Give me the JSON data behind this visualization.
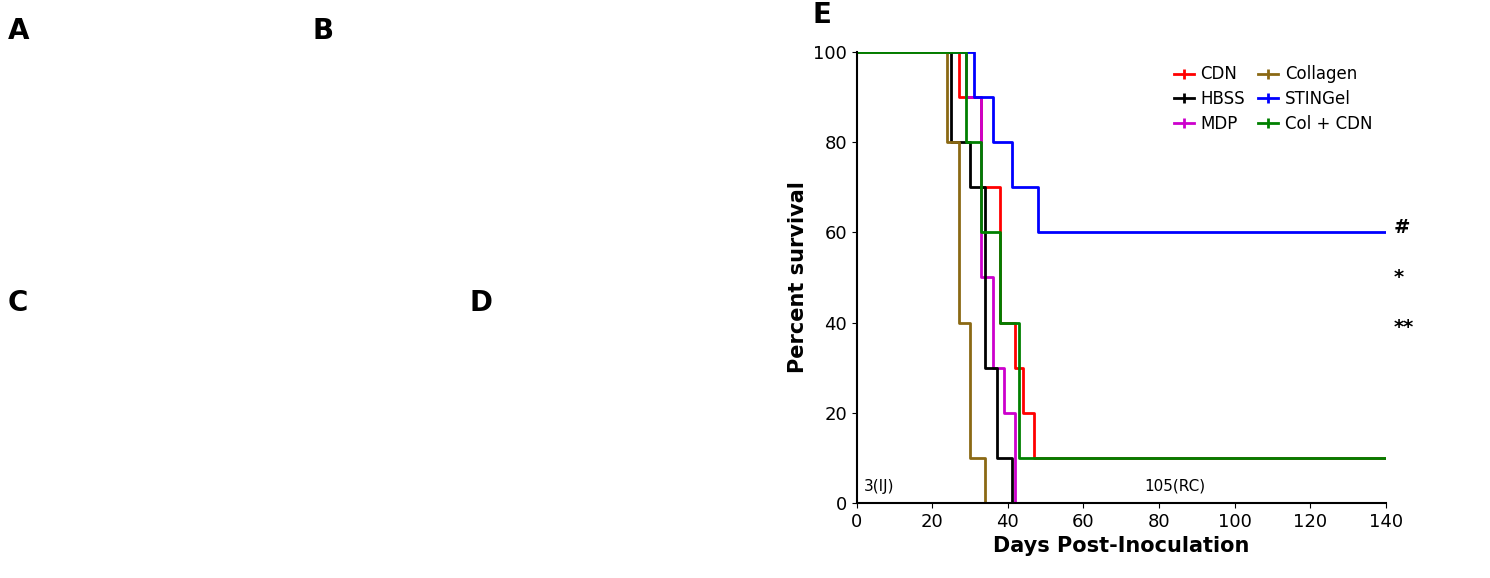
{
  "title": "E",
  "xlabel": "Days Post-Inoculation",
  "ylabel": "Percent survival",
  "xlim": [
    0,
    140
  ],
  "ylim": [
    0,
    100
  ],
  "xticks": [
    0,
    20,
    40,
    60,
    80,
    100,
    120,
    140
  ],
  "yticks": [
    0,
    20,
    40,
    60,
    80,
    100
  ],
  "annotation_left": "3(IJ)",
  "annotation_right": "105(RC)",
  "annotation_hash": "#",
  "annotation_star": "*",
  "annotation_double_star": "**",
  "curves": {
    "CDN": {
      "color": "#ff0000",
      "steps": [
        [
          0,
          100
        ],
        [
          27,
          100
        ],
        [
          27,
          90
        ],
        [
          33,
          90
        ],
        [
          33,
          70
        ],
        [
          38,
          70
        ],
        [
          38,
          40
        ],
        [
          42,
          40
        ],
        [
          42,
          30
        ],
        [
          44,
          30
        ],
        [
          44,
          20
        ],
        [
          47,
          20
        ],
        [
          47,
          10
        ],
        [
          140,
          10
        ]
      ]
    },
    "MDP": {
      "color": "#cc00cc",
      "steps": [
        [
          0,
          100
        ],
        [
          29,
          100
        ],
        [
          29,
          90
        ],
        [
          33,
          90
        ],
        [
          33,
          50
        ],
        [
          36,
          50
        ],
        [
          36,
          30
        ],
        [
          39,
          30
        ],
        [
          39,
          20
        ],
        [
          42,
          20
        ],
        [
          42,
          0
        ]
      ]
    },
    "STINGel": {
      "color": "#0000ff",
      "steps": [
        [
          0,
          100
        ],
        [
          31,
          100
        ],
        [
          31,
          90
        ],
        [
          36,
          90
        ],
        [
          36,
          80
        ],
        [
          41,
          80
        ],
        [
          41,
          70
        ],
        [
          48,
          70
        ],
        [
          48,
          60
        ],
        [
          140,
          60
        ]
      ]
    },
    "HBSS": {
      "color": "#000000",
      "steps": [
        [
          0,
          100
        ],
        [
          25,
          100
        ],
        [
          25,
          80
        ],
        [
          30,
          80
        ],
        [
          30,
          70
        ],
        [
          34,
          70
        ],
        [
          34,
          30
        ],
        [
          37,
          30
        ],
        [
          37,
          10
        ],
        [
          41,
          10
        ],
        [
          41,
          0
        ]
      ]
    },
    "Collagen": {
      "color": "#8B6914",
      "steps": [
        [
          0,
          100
        ],
        [
          24,
          100
        ],
        [
          24,
          80
        ],
        [
          27,
          80
        ],
        [
          27,
          40
        ],
        [
          30,
          40
        ],
        [
          30,
          10
        ],
        [
          34,
          10
        ],
        [
          34,
          0
        ]
      ]
    },
    "Col + CDN": {
      "color": "#008000",
      "steps": [
        [
          0,
          100
        ],
        [
          29,
          100
        ],
        [
          29,
          80
        ],
        [
          33,
          80
        ],
        [
          33,
          60
        ],
        [
          38,
          60
        ],
        [
          38,
          40
        ],
        [
          43,
          40
        ],
        [
          43,
          10
        ],
        [
          140,
          10
        ]
      ]
    }
  },
  "legend_order_col1": [
    "CDN",
    "MDP",
    "STINGel"
  ],
  "legend_order_col2": [
    "HBSS",
    "Collagen",
    "Col + CDN"
  ],
  "figure_bg": "#ffffff",
  "panel_label_fontsize": 20,
  "axis_fontsize": 15,
  "tick_fontsize": 13,
  "legend_fontsize": 12,
  "annot_fontsize": 11,
  "sig_fontsize": 14
}
